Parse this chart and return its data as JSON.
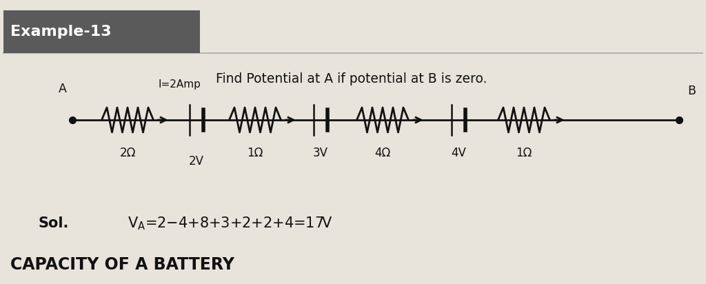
{
  "bg_color": "#d4d0c8",
  "paper_color": "#e8e4dc",
  "header_bg": "#5a5a5a",
  "header_text": "Example-13",
  "header_text_color": "#ffffff",
  "title_text": "Find Potential at A if potential at B is zero.",
  "title_color": "#111111",
  "sol_label": "Sol.",
  "bottom_text": "CAPACITY OF A BATTERY",
  "circuit_color": "#111111",
  "label_A": "A",
  "label_B": "B",
  "label_I": "I=2Amp",
  "components_below": [
    "2Ω",
    "2V",
    "1Ω",
    "3V",
    "4Ω",
    "4V",
    "1Ω"
  ],
  "figsize": [
    10.24,
    4.12
  ],
  "dpi": 100
}
